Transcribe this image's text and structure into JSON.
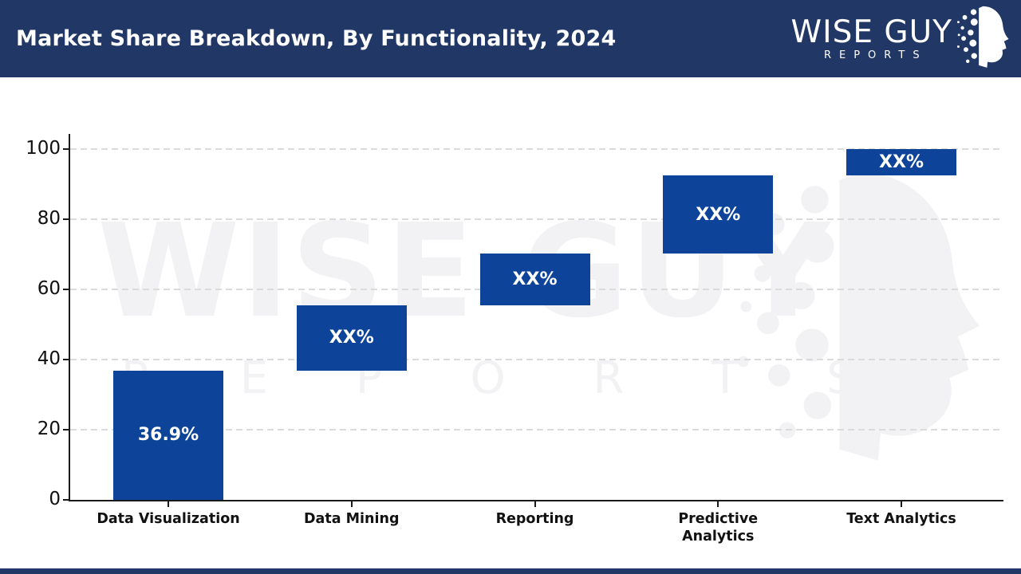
{
  "header": {
    "title": "Market Share Breakdown, By Functionality, 2024",
    "brand": {
      "line1": "WISE GUY",
      "line2": "REPORTS"
    }
  },
  "watermark": {
    "line1": "WISE GUY",
    "line2": "R E P O R T S"
  },
  "colors": {
    "header_bg": "#213867",
    "bar": "#0d4499",
    "bar_label": "#ffffff",
    "grid": "#dbdbdb",
    "axis": "#1a1a1a",
    "watermark": "#f2f2f4"
  },
  "chart_data": {
    "type": "bar",
    "subtype": "stacked-waterfall",
    "title": "Market Share Breakdown, By Functionality, 2024",
    "categories": [
      "Data Visualization",
      "Data Mining",
      "Reporting",
      "Predictive Analytics",
      "Text Analytics"
    ],
    "categories_display": [
      "Data Visualization",
      "Data Mining",
      "Reporting",
      "Predictive\nAnalytics",
      "Text Analytics"
    ],
    "segments": [
      {
        "category": "Data Visualization",
        "start": 0,
        "end": 36.9,
        "size_pct": 36.9,
        "label": "36.9%"
      },
      {
        "category": "Data Mining",
        "start": 36.9,
        "end": 55.5,
        "size_pct": 18.6,
        "label": "XX%"
      },
      {
        "category": "Reporting",
        "start": 55.5,
        "end": 70.2,
        "size_pct": 14.7,
        "label": "XX%"
      },
      {
        "category": "Predictive Analytics",
        "start": 70.2,
        "end": 92.5,
        "size_pct": 22.3,
        "label": "XX%"
      },
      {
        "category": "Text Analytics",
        "start": 92.5,
        "end": 100,
        "size_pct": 7.5,
        "label": "XX%"
      }
    ],
    "yticks": [
      0,
      20,
      40,
      60,
      80,
      100
    ],
    "ylim": [
      0,
      105
    ],
    "xlabel": "",
    "ylabel": "",
    "grid": "dashed-horizontal",
    "legend": "none"
  }
}
